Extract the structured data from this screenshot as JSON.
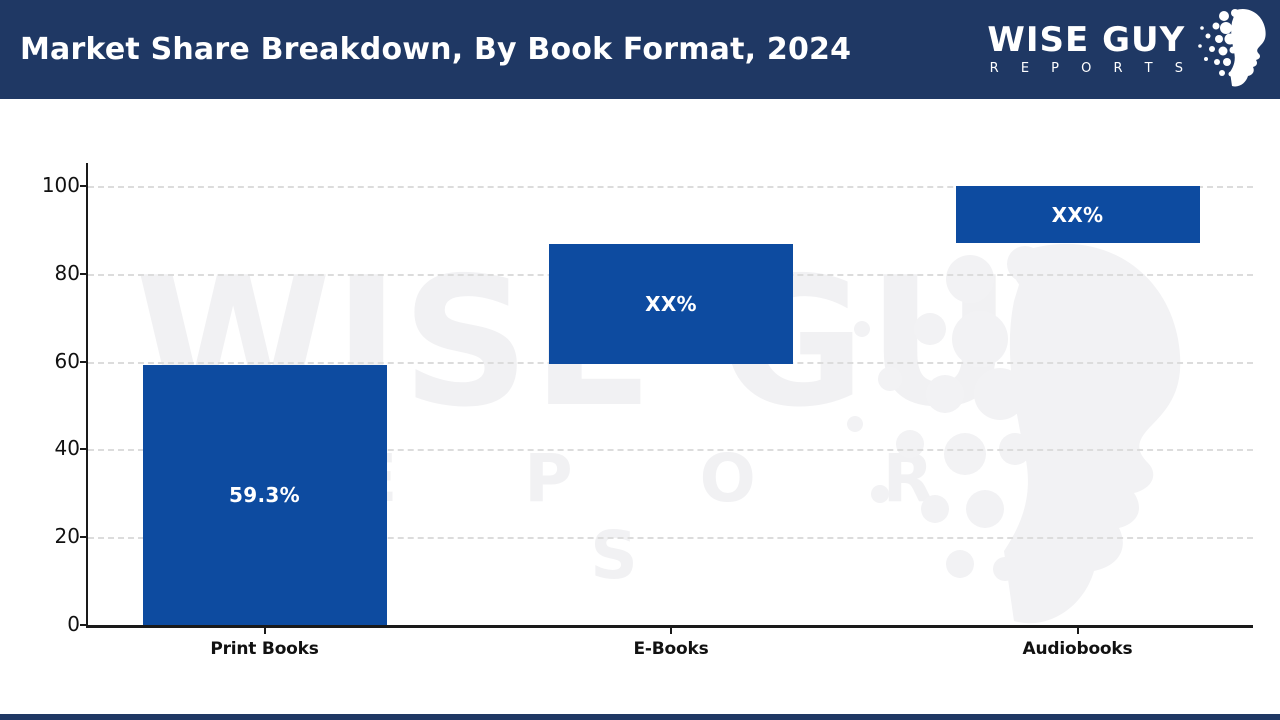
{
  "header": {
    "title": "Market Share Breakdown, By Book Format, 2024",
    "logo": {
      "line1": "WISE GUY",
      "line2": "R E P O R T S"
    }
  },
  "watermark": {
    "line1": "WISE GUY",
    "line2": "R E P O R T S"
  },
  "colors": {
    "header_bg": "#1F3864",
    "footer_bg": "#1F3864",
    "bar": "#0D4BA0",
    "bar_label": "#FFFFFF",
    "grid": "#DCDCDC",
    "axis": "#1A1A1A",
    "watermark": "#F1F1F3"
  },
  "chart_data": {
    "type": "bar",
    "subtype": "waterfall-stacked-percentage",
    "title": "Market Share Breakdown, By Book Format, 2024",
    "categories": [
      "Print Books",
      "E-Books",
      "Audiobooks"
    ],
    "segments": [
      {
        "category": "Print Books",
        "start": 0,
        "end": 59.3,
        "label": "59.3%"
      },
      {
        "category": "E-Books",
        "start": 59.4,
        "end": 86.9,
        "label": "XX%"
      },
      {
        "category": "Audiobooks",
        "start": 87.0,
        "end": 100.0,
        "label": "XX%"
      }
    ],
    "xlabel": "",
    "ylabel": "",
    "ylim": [
      0,
      100
    ],
    "yticks": [
      0,
      20,
      40,
      60,
      80,
      100
    ],
    "grid": "horizontal-dashed",
    "legend": "none"
  }
}
